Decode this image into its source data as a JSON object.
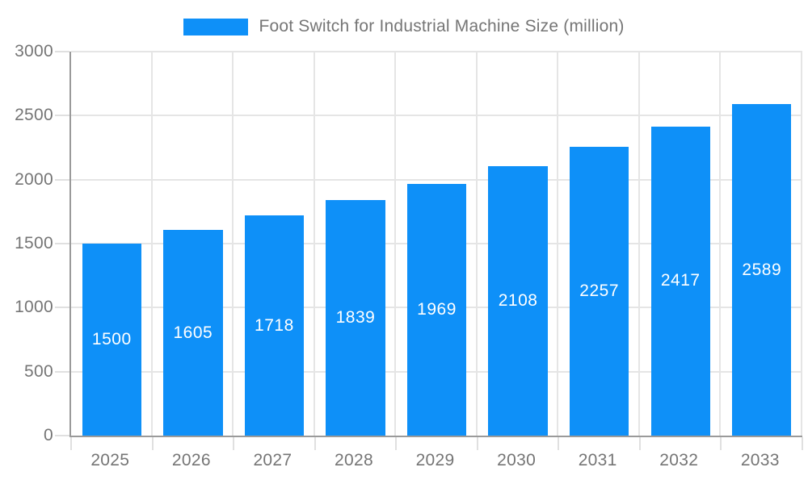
{
  "legend": {
    "label": "Foot Switch for Industrial Machine Size (million)"
  },
  "colors": {
    "bar": "#0E90F8",
    "grid": "#E5E5E5",
    "axis": "#9A9A9A",
    "tick": "#E0E0E0",
    "axis_label": "#757575",
    "bar_label": "#FFFFFF",
    "background": "#FFFFFF"
  },
  "chart_data": {
    "type": "bar",
    "title": "Foot Switch for Industrial Machine Size (million)",
    "categories": [
      "2025",
      "2026",
      "2027",
      "2028",
      "2029",
      "2030",
      "2031",
      "2032",
      "2033"
    ],
    "values": [
      1500,
      1605,
      1718,
      1839,
      1969,
      2108,
      2257,
      2417,
      2589
    ],
    "series_name": "Foot Switch for Industrial Machine Size (million)",
    "xlabel": "",
    "ylabel": "",
    "ylim": [
      0,
      3000
    ],
    "yticks": [
      0,
      500,
      1000,
      1500,
      2000,
      2500,
      3000
    ],
    "grid": true,
    "legend_position": "top-center",
    "bar_value_labels": "inside-center"
  }
}
